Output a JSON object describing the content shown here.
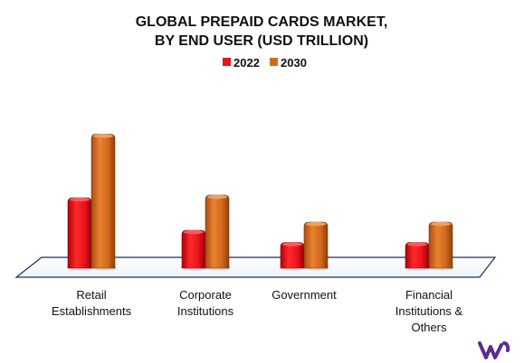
{
  "chart_data": {
    "type": "bar",
    "title": [
      "GLOBAL PREPAID CARDS MARKET,",
      "BY END USER (USD TRILLION)"
    ],
    "xlabel": "",
    "ylabel": "",
    "ylim": [
      0,
      10
    ],
    "categories": [
      [
        "Retail",
        "Establishments"
      ],
      [
        "Corporate",
        "Institutions"
      ],
      [
        "Government"
      ],
      [
        "Financial",
        "Institutions &",
        "Others"
      ]
    ],
    "series": [
      {
        "name": "2022",
        "color": "#e8141c",
        "values": [
          5.2,
          2.8,
          1.9,
          1.9
        ]
      },
      {
        "name": "2030",
        "color": "#d2691e",
        "values": [
          9.9,
          5.4,
          3.4,
          3.4
        ]
      }
    ],
    "legend_position": "top-center",
    "grid": false
  },
  "logo": {
    "name": "vmr-logo",
    "color": "#5b2d8e"
  }
}
